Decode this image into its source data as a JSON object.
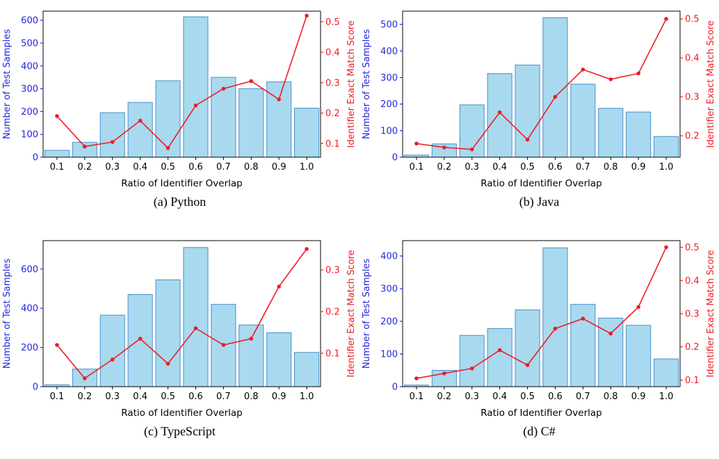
{
  "figure": {
    "background": "#ffffff"
  },
  "style": {
    "bar_fill": "#a8d9ef",
    "bar_edge": "#4a90c9",
    "line_color": "#ed1c24",
    "left_axis_color": "#2424dd",
    "right_axis_color": "#ed1c24",
    "x_axis_color": "#000000",
    "frame_color": "#000000"
  },
  "chart_data": [
    {
      "type": "bar+line",
      "caption": "(a) Python",
      "xlabel": "Ratio of Identifier Overlap",
      "ylabel_left": "Number of Test Samples",
      "ylabel_right": "Identifier Exact Match Score",
      "categories": [
        "0.1",
        "0.2",
        "0.3",
        "0.4",
        "0.5",
        "0.6",
        "0.7",
        "0.8",
        "0.9",
        "1.0"
      ],
      "series": [
        {
          "name": "Number of Test Samples",
          "type": "bar",
          "axis": "left",
          "values": [
            30,
            65,
            195,
            240,
            335,
            615,
            350,
            300,
            330,
            215
          ]
        },
        {
          "name": "Identifier Exact Match Score",
          "type": "line",
          "axis": "right",
          "values": [
            0.19,
            0.09,
            0.105,
            0.175,
            0.085,
            0.225,
            0.28,
            0.305,
            0.245,
            0.52
          ]
        }
      ],
      "ylim_left": [
        0,
        640
      ],
      "yticks_left": [
        0,
        100,
        200,
        300,
        400,
        500,
        600
      ],
      "ylim_right": [
        0.055,
        0.535
      ],
      "yticks_right": [
        0.1,
        0.2,
        0.3,
        0.4,
        0.5
      ],
      "grid": false,
      "legend": "none"
    },
    {
      "type": "bar+line",
      "caption": "(b) Java",
      "xlabel": "Ratio of Identifier Overlap",
      "ylabel_left": "Number of Test Samples",
      "ylabel_right": "Identifier Exact Match Score",
      "categories": [
        "0.1",
        "0.2",
        "0.3",
        "0.4",
        "0.5",
        "0.6",
        "0.7",
        "0.8",
        "0.9",
        "1.0"
      ],
      "series": [
        {
          "name": "Number of Test Samples",
          "type": "bar",
          "axis": "left",
          "values": [
            8,
            50,
            197,
            315,
            347,
            525,
            275,
            184,
            170,
            78
          ]
        },
        {
          "name": "Identifier Exact Match Score",
          "type": "line",
          "axis": "right",
          "values": [
            0.18,
            0.17,
            0.165,
            0.26,
            0.19,
            0.3,
            0.37,
            0.345,
            0.36,
            0.5
          ]
        }
      ],
      "ylim_left": [
        0,
        550
      ],
      "yticks_left": [
        0,
        100,
        200,
        300,
        400,
        500
      ],
      "ylim_right": [
        0.145,
        0.52
      ],
      "yticks_right": [
        0.2,
        0.3,
        0.4,
        0.5
      ],
      "grid": false,
      "legend": "none"
    },
    {
      "type": "bar+line",
      "caption": "(c) TypeScript",
      "xlabel": "Ratio of Identifier Overlap",
      "ylabel_left": "Number of Test Samples",
      "ylabel_right": "Identifier Exact Match Score",
      "categories": [
        "0.1",
        "0.2",
        "0.3",
        "0.4",
        "0.5",
        "0.6",
        "0.7",
        "0.8",
        "0.9",
        "1.0"
      ],
      "series": [
        {
          "name": "Number of Test Samples",
          "type": "bar",
          "axis": "left",
          "values": [
            10,
            90,
            365,
            470,
            545,
            710,
            420,
            315,
            275,
            175
          ]
        },
        {
          "name": "Identifier Exact Match Score",
          "type": "line",
          "axis": "right",
          "values": [
            0.12,
            0.04,
            0.085,
            0.135,
            0.075,
            0.16,
            0.12,
            0.135,
            0.26,
            0.35
          ]
        }
      ],
      "ylim_left": [
        0,
        745
      ],
      "yticks_left": [
        0,
        200,
        400,
        600
      ],
      "ylim_right": [
        0.02,
        0.37
      ],
      "yticks_right": [
        0.1,
        0.2,
        0.3
      ],
      "grid": false,
      "legend": "none"
    },
    {
      "type": "bar+line",
      "caption": "(d) C#",
      "xlabel": "Ratio of Identifier Overlap",
      "ylabel_left": "Number of Test Samples",
      "ylabel_right": "Identifier Exact Match Score",
      "categories": [
        "0.1",
        "0.2",
        "0.3",
        "0.4",
        "0.5",
        "0.6",
        "0.7",
        "0.8",
        "0.9",
        "1.0"
      ],
      "series": [
        {
          "name": "Number of Test Samples",
          "type": "bar",
          "axis": "left",
          "values": [
            5,
            50,
            157,
            178,
            235,
            425,
            252,
            210,
            188,
            85
          ]
        },
        {
          "name": "Identifier Exact Match Score",
          "type": "line",
          "axis": "right",
          "values": [
            0.105,
            0.12,
            0.135,
            0.19,
            0.145,
            0.255,
            0.285,
            0.24,
            0.32,
            0.5
          ]
        }
      ],
      "ylim_left": [
        0,
        447
      ],
      "yticks_left": [
        0,
        100,
        200,
        300,
        400
      ],
      "ylim_right": [
        0.08,
        0.52
      ],
      "yticks_right": [
        0.1,
        0.2,
        0.3,
        0.4,
        0.5
      ],
      "grid": false,
      "legend": "none"
    }
  ]
}
